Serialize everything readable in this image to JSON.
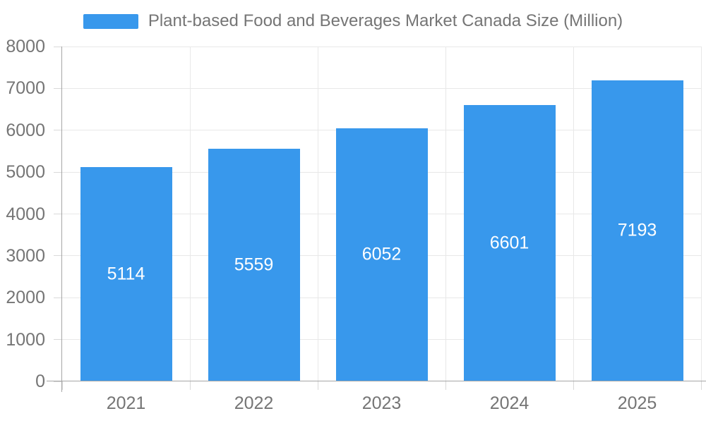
{
  "chart_data": {
    "type": "bar",
    "title": "Plant-based Food and Beverages Market Canada Size (Million)",
    "categories": [
      "2021",
      "2022",
      "2023",
      "2024",
      "2025"
    ],
    "values": [
      5114,
      5559,
      6052,
      6601,
      7193
    ],
    "xlabel": "",
    "ylabel": "",
    "ylim": [
      0,
      8000
    ],
    "ytick_step": 1000,
    "yticks": [
      0,
      1000,
      2000,
      3000,
      4000,
      5000,
      6000,
      7000,
      8000
    ],
    "grid": true,
    "legend_position": "top-center",
    "value_labels_position": "inside-center",
    "colors": {
      "bar": "#3898EC",
      "grid": "#e8e8e8",
      "tick": "#d9d9d9",
      "axis": "#a6a6a6",
      "axis_text": "#757575",
      "legend_text": "#757575",
      "bar_label_text": "#ffffff",
      "background": "#ffffff"
    }
  }
}
